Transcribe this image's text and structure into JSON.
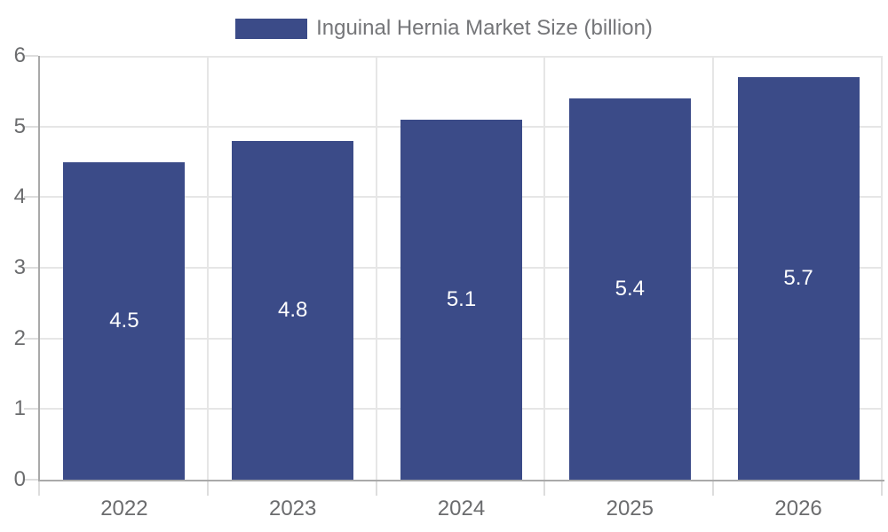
{
  "chart_data": {
    "type": "bar",
    "title": "",
    "legend": "Inguinal Hernia Market Size (billion)",
    "legend_position": "top",
    "categories": [
      "2022",
      "2023",
      "2024",
      "2025",
      "2026"
    ],
    "series": [
      {
        "name": "Inguinal Hernia Market Size (billion)",
        "values": [
          4.5,
          4.8,
          5.1,
          5.4,
          5.7
        ],
        "value_labels": [
          "4.5",
          "4.8",
          "5.1",
          "5.4",
          "5.7"
        ]
      }
    ],
    "xlabel": "",
    "ylabel": "",
    "ylim": [
      0,
      6
    ],
    "yticks": [
      0,
      1,
      2,
      3,
      4,
      5,
      6
    ],
    "grid": true,
    "colors": {
      "bar": "#3B4B88",
      "grid": "#e6e6e6",
      "tick": "#dddddd",
      "axis_border": "#a9a9a9",
      "axis_text": "#6b6c6e",
      "legend_text": "#757679",
      "bar_label": "#ffffff",
      "background": "#ffffff"
    }
  }
}
